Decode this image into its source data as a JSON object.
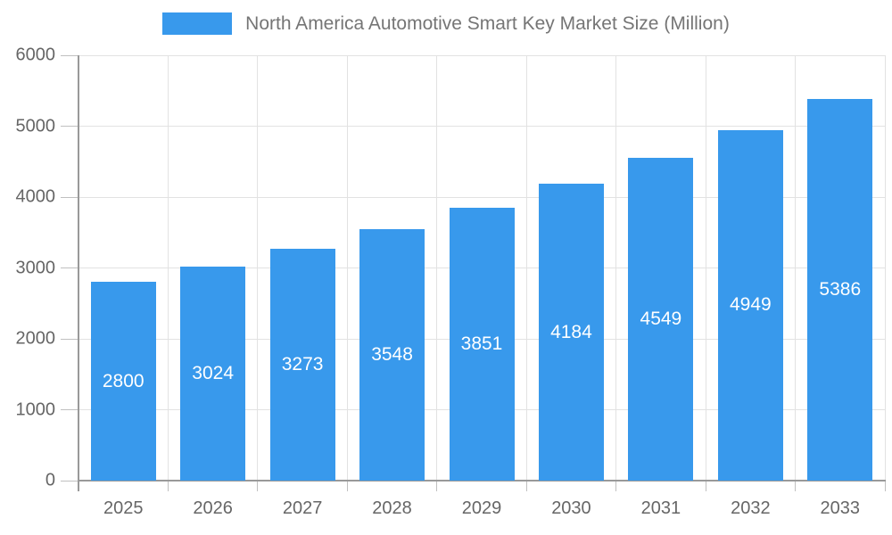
{
  "legend": {
    "title": "North America Automotive Smart Key Market Size (Million)"
  },
  "chart_data": {
    "type": "bar",
    "title": "North America Automotive Smart Key Market Size (Million)",
    "series_name": "North America Automotive Smart Key Market Size (Million)",
    "categories": [
      "2025",
      "2026",
      "2027",
      "2028",
      "2029",
      "2030",
      "2031",
      "2032",
      "2033"
    ],
    "values": [
      2800,
      3024,
      3273,
      3548,
      3851,
      4184,
      4549,
      4949,
      5386
    ],
    "xlabel": "",
    "ylabel": "",
    "ylim": [
      0,
      6000
    ],
    "y_ticks": [
      0,
      1000,
      2000,
      3000,
      4000,
      5000,
      6000
    ],
    "grid": true,
    "legend_position": "top",
    "value_labels": "inside-center"
  },
  "colors": {
    "bar": "#3899EC",
    "bar_value_label": "#FFFFFF",
    "axis_label": "#666666",
    "legend_text": "#757575",
    "gridline": "#E2E2E2",
    "axis_line": "#999999",
    "tick": "#C0C0C0",
    "background": "#FFFFFF"
  }
}
